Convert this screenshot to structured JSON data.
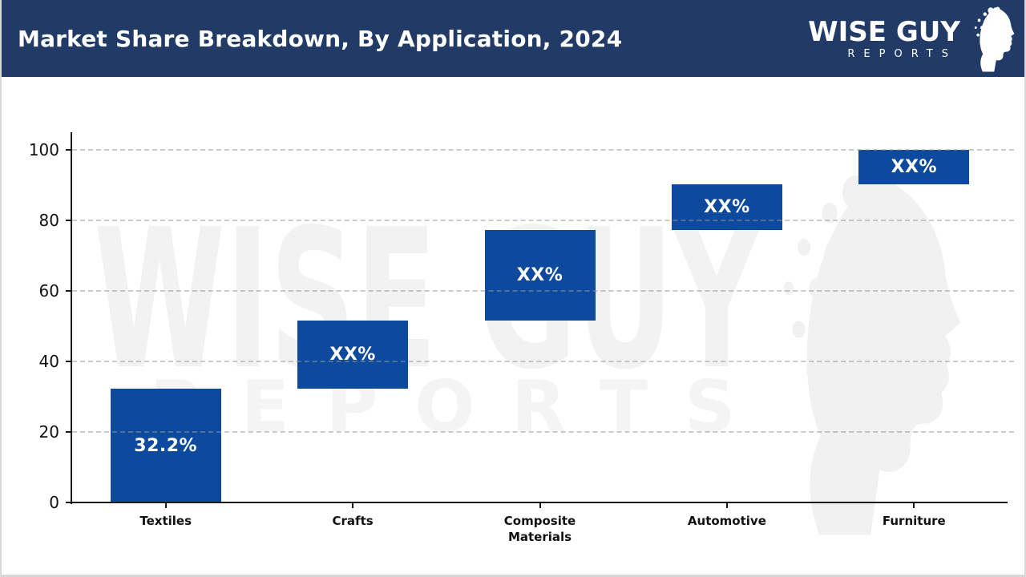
{
  "header": {
    "title": "Market Share Breakdown, By Application, 2024",
    "logo": {
      "line1": "WISE GUY",
      "line2": "REPORTS"
    },
    "bg_color": "#213a66"
  },
  "watermark": {
    "line1": "WISE GUY",
    "line2": "REPORTS"
  },
  "chart_data": {
    "type": "bar",
    "subtype": "waterfall",
    "title": "Market Share Breakdown, By Application, 2024",
    "xlabel": "",
    "ylabel": "",
    "categories": [
      "Textiles",
      "Crafts",
      "Composite Materials",
      "Automotive",
      "Furniture"
    ],
    "segments": [
      {
        "category": "Textiles",
        "start": 0,
        "end": 32.2,
        "label": "32.2%"
      },
      {
        "category": "Crafts",
        "start": 32.2,
        "end": 51.6,
        "label": "XX%"
      },
      {
        "category": "Composite Materials",
        "start": 51.6,
        "end": 77.3,
        "label": "XX%"
      },
      {
        "category": "Automotive",
        "start": 77.3,
        "end": 90.3,
        "label": "XX%"
      },
      {
        "category": "Furniture",
        "start": 90.3,
        "end": 100,
        "label": "XX%"
      }
    ],
    "y_ticks": [
      0,
      20,
      40,
      60,
      80,
      100
    ],
    "ylim": [
      0,
      105
    ],
    "grid": "dashed horizontal, drawn over bars",
    "legend": "none",
    "bar_color": "#0d4a9d",
    "label_color": "#ffffff"
  }
}
